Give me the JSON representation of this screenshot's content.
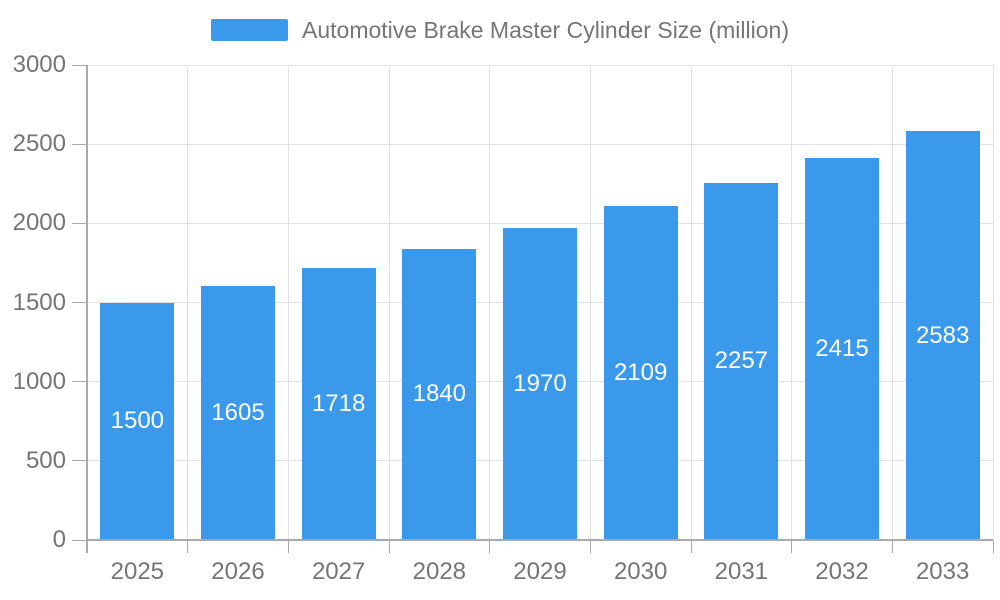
{
  "chart_data": {
    "type": "bar",
    "title": "Automotive Brake Master Cylinder Size (million)",
    "categories": [
      "2025",
      "2026",
      "2027",
      "2028",
      "2029",
      "2030",
      "2031",
      "2032",
      "2033"
    ],
    "values": [
      1500,
      1605,
      1718,
      1840,
      1970,
      2109,
      2257,
      2415,
      2583
    ],
    "xlabel": "",
    "ylabel": "",
    "ylim": [
      0,
      3000
    ],
    "yticks": [
      0,
      500,
      1000,
      1500,
      2000,
      2500,
      3000
    ],
    "grid": true,
    "legend_position": "top",
    "bar_label_position": "inside-center"
  },
  "colors": {
    "bar": "#3b99ec",
    "bar_label_text": "#ffffff",
    "axis_line": "#a9a9a9",
    "grid_line": "#e2e2e2",
    "axis_text": "#757575",
    "legend_text": "#757575",
    "background": "#ffffff"
  }
}
